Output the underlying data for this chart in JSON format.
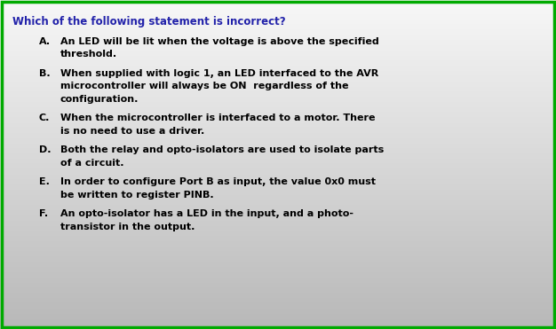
{
  "title": "Which of the following statement is incorrect?",
  "title_color": "#2222aa",
  "title_fontsize": 8.5,
  "items": [
    {
      "label": "A.",
      "lines": [
        "An LED will be lit when the voltage is above the specified",
        "threshold."
      ]
    },
    {
      "label": "B.",
      "lines": [
        "When supplied with logic 1, an LED interfaced to the AVR",
        "microcontroller will always be ON  regardless of the",
        "configuration."
      ]
    },
    {
      "label": "C.",
      "lines": [
        "When the microcontroller is interfaced to a motor. There",
        "is no need to use a driver."
      ]
    },
    {
      "label": "D.",
      "lines": [
        "Both the relay and opto-isolators are used to isolate parts",
        "of a circuit."
      ]
    },
    {
      "label": "E.",
      "lines": [
        "In order to configure Port B as input, the value 0x0 must",
        "be written to register PINB."
      ]
    },
    {
      "label": "F.",
      "lines": [
        "An opto-isolator has a LED in the input, and a photo-",
        "transistor in the output."
      ]
    }
  ],
  "item_fontsize": 8.0,
  "item_color": "#000000",
  "border_color": "#00aa00",
  "border_width": 2.5,
  "fig_width": 6.26,
  "fig_height": 3.71,
  "dpi": 100
}
